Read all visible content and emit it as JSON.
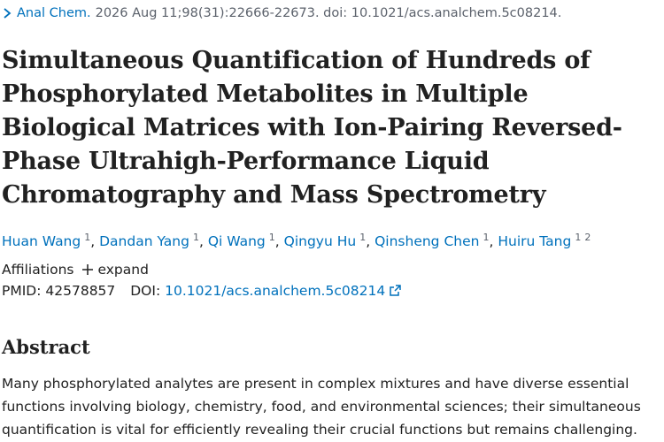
{
  "citation": {
    "journal": "Anal Chem.",
    "details": "2026 Aug 11;98(31):22666-22673. doi: 10.1021/acs.analchem.5c08214."
  },
  "title": "Simultaneous Quantification of Hundreds of Phosphorylated Metabolites in Multiple Biological Matrices with Ion-Pairing Reversed-Phase Ultrahigh-Performance Liquid Chromatography and Mass Spectrometry",
  "author_separator": ",",
  "authors": [
    {
      "name": "Huan Wang",
      "affiliations": [
        "1"
      ]
    },
    {
      "name": "Dandan Yang",
      "affiliations": [
        "1"
      ]
    },
    {
      "name": "Qi Wang",
      "affiliations": [
        "1"
      ]
    },
    {
      "name": "Qingyu Hu",
      "affiliations": [
        "1"
      ]
    },
    {
      "name": "Qinsheng Chen",
      "affiliations": [
        "1"
      ]
    },
    {
      "name": "Huiru Tang",
      "affiliations": [
        "1",
        "2"
      ]
    }
  ],
  "affiliations": {
    "label": "Affiliations",
    "toggle": "expand"
  },
  "identifiers": {
    "pmid_label": "PMID:",
    "pmid": "42578857",
    "doi_label": "DOI:",
    "doi": "10.1021/acs.analchem.5c08214"
  },
  "abstract": {
    "heading": "Abstract",
    "text": "Many phosphorylated analytes are present in complex mixtures and have diverse essential functions involving biology, chemistry, food, and environmental sciences; their simultaneous quantification is vital for efficiently revealing their crucial functions but remains challenging. Here, we developed a"
  }
}
